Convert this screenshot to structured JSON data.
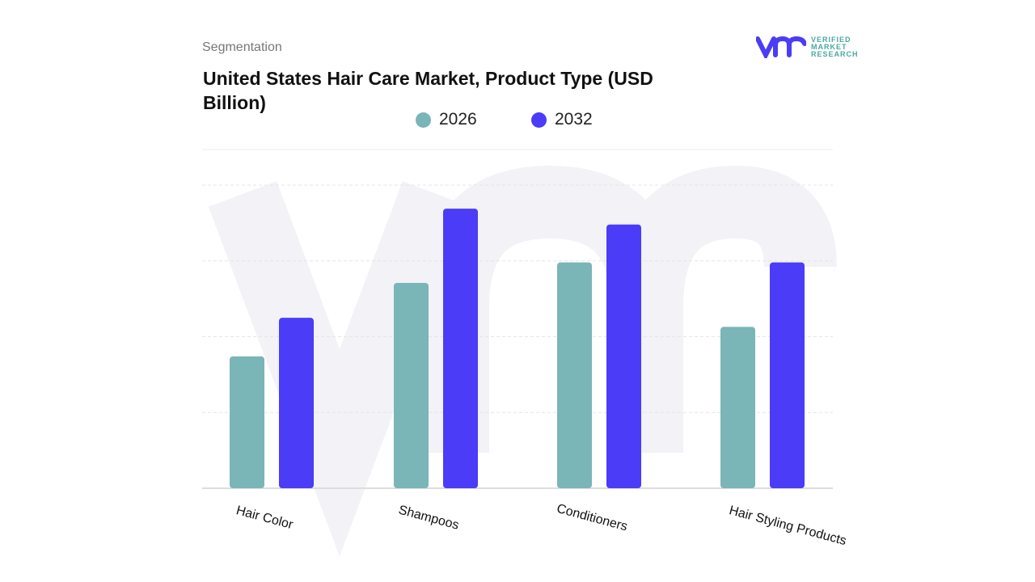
{
  "header": {
    "segmentation_label": "Segmentation",
    "logo_text": [
      "VERIFIED",
      "MARKET",
      "RESEARCH"
    ]
  },
  "chart_data": {
    "type": "bar",
    "title": "United States Hair Care Market, Product Type (USD Billion)",
    "categories": [
      "Hair Color",
      "Shampoos",
      "Conditioners",
      "Hair Styling Products"
    ],
    "series": [
      {
        "name": "2026",
        "color": "#7ab5b7",
        "values": [
          1.74,
          2.71,
          2.98,
          2.13
        ]
      },
      {
        "name": "2032",
        "color": "#4b3cf7",
        "values": [
          2.25,
          3.69,
          3.48,
          2.98
        ]
      }
    ],
    "ylim": [
      0,
      4.7
    ],
    "grid": true,
    "legend": "top-center",
    "xlabel": "",
    "ylabel": ""
  }
}
